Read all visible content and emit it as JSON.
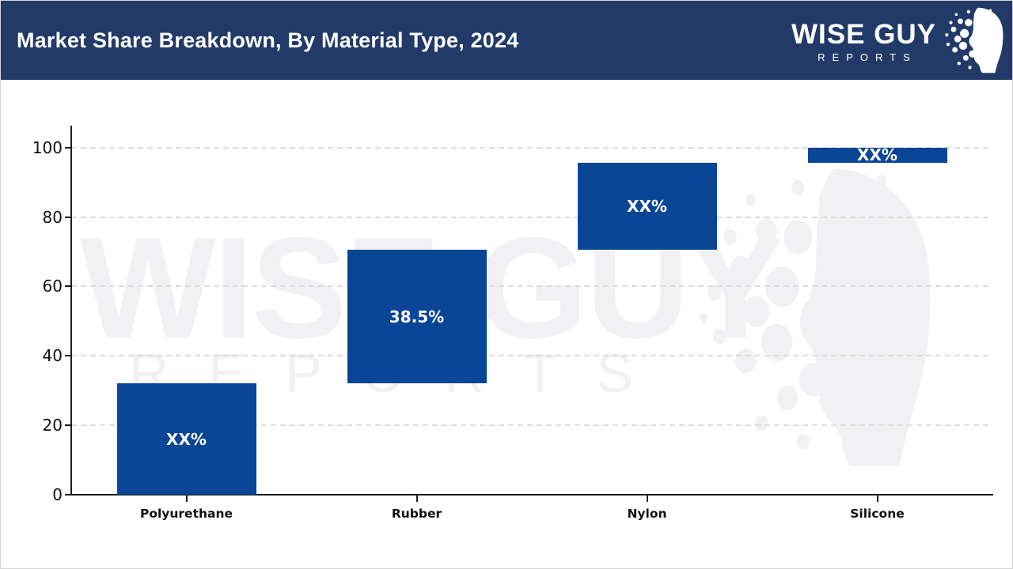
{
  "header": {
    "title": "Market Share Breakdown, By Material Type, 2024",
    "logo": {
      "line1": "WISE GUY",
      "line2": "REPORTS",
      "icon": "dotted-face-profile"
    }
  },
  "watermark": {
    "line1": "WISE GUY",
    "line2": "REPORTS",
    "icon": "dotted-face-profile"
  },
  "colors": {
    "header_bg": "#223a68",
    "bar": "#0a4596",
    "bar_label": "#ffffff",
    "grid": "#dcdcdc",
    "axis": "#1c1c1c",
    "watermark": "#f1f1f4"
  },
  "chart_data": {
    "type": "bar",
    "variant": "floating-segment-bars (each bar spans cumulative range, waterfall style)",
    "title": "Market Share Breakdown, By Material Type, 2024",
    "categories": [
      "Polyurethane",
      "Rubber",
      "Nylon",
      "Silicone"
    ],
    "segments": [
      {
        "category": "Polyurethane",
        "start": 0,
        "end": 32,
        "value_label": "XX%"
      },
      {
        "category": "Rubber",
        "start": 32,
        "end": 70.5,
        "value_label": "38.5%"
      },
      {
        "category": "Nylon",
        "start": 70.5,
        "end": 95.7,
        "value_label": "XX%"
      },
      {
        "category": "Silicone",
        "start": 95.7,
        "end": 100,
        "value_label": "XX%"
      }
    ],
    "xlabel": "",
    "ylabel": "",
    "ylim": [
      0,
      100
    ],
    "yticks": [
      0,
      20,
      40,
      60,
      80,
      100
    ],
    "grid": "horizontal dashed lines at y ticks",
    "legend": "none",
    "values_unit": "percent market share"
  }
}
